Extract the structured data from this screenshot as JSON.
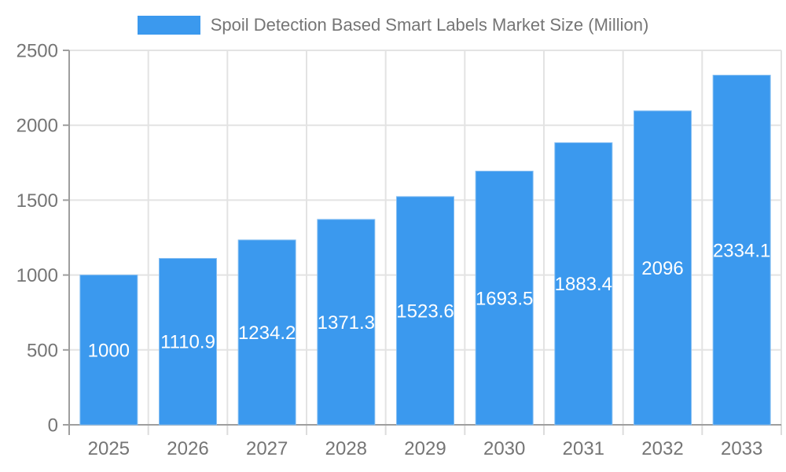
{
  "chart_data": {
    "type": "bar",
    "title": "Spoil Detection Based Smart Labels Market Size (Million)",
    "categories": [
      "2025",
      "2026",
      "2027",
      "2028",
      "2029",
      "2030",
      "2031",
      "2032",
      "2033"
    ],
    "values": [
      1000,
      1110.9,
      1234.2,
      1371.3,
      1523.6,
      1693.5,
      1883.4,
      2096,
      2334.1
    ],
    "value_labels": [
      "1000",
      "1110.9",
      "1234.2",
      "1371.3",
      "1523.6",
      "1693.5",
      "1883.4",
      "2096",
      "2334.1"
    ],
    "ytick_labels": [
      "0",
      "500",
      "1000",
      "1500",
      "2000",
      "2500"
    ],
    "ylim": [
      0,
      2500
    ],
    "ytick_step": 500,
    "xlabel": "",
    "ylabel": "",
    "grid": true,
    "legend_position": "top",
    "colors": {
      "bar_fill": "#3b99ee",
      "bar_border": "#85bef2",
      "grid_line": "#e3e3e3",
      "axis_line": "#9e9e9e",
      "x_tick_line": "#dcdcdc",
      "tick_label": "#757575",
      "value_label": "#ffffff",
      "legend_text": "#757575",
      "background": "#ffffff"
    }
  }
}
